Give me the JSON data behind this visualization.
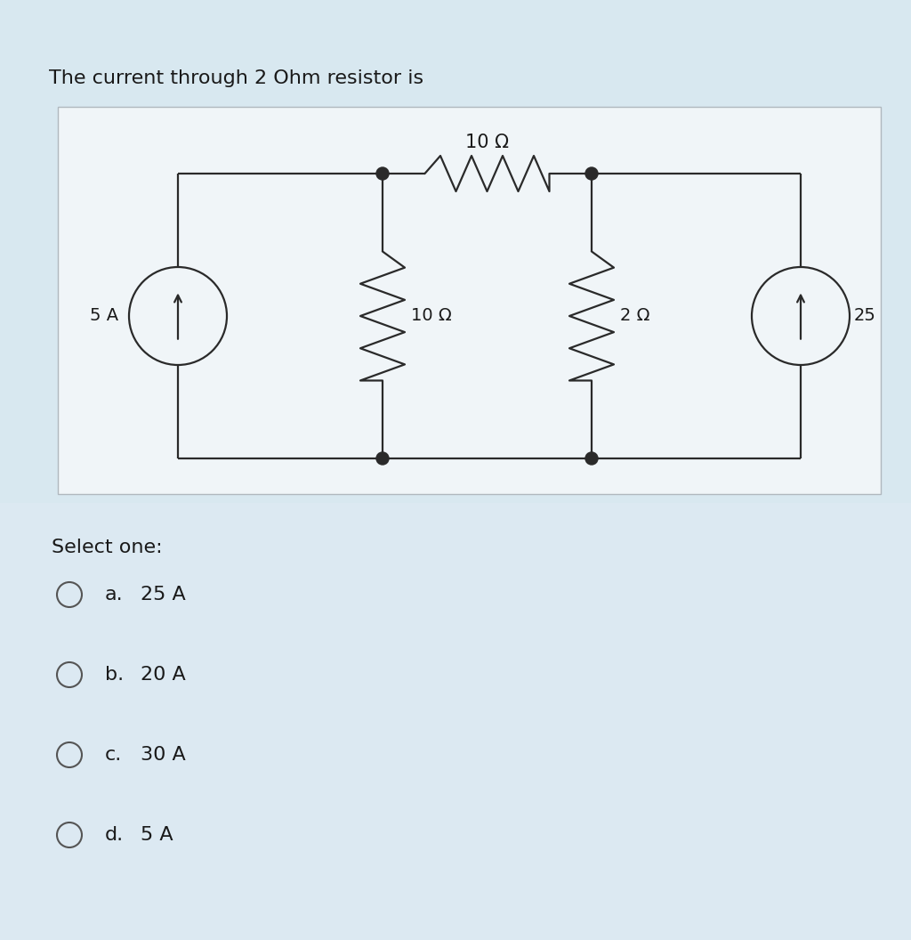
{
  "title": "The current through 2 Ohm resistor is",
  "title_fontsize": 16,
  "bg_color_top": "#d8e8f0",
  "bg_color_bottom": "#dce9f2",
  "circuit_bg": "#f0f5f8",
  "circuit_border": "#b0b8be",
  "line_color": "#2a2a2a",
  "text_color": "#1a1a1a",
  "options": [
    {
      "label": "a.",
      "text": "25 A"
    },
    {
      "label": "b.",
      "text": "20 A"
    },
    {
      "label": "c.",
      "text": "30 A"
    },
    {
      "label": "d.",
      "text": "5 A"
    }
  ],
  "select_text": "Select one:",
  "resistor_label_top": "10 Ω",
  "resistor_label_mid_left": "10 Ω",
  "resistor_label_mid_right": "2 Ω",
  "source_left_label": "5 A",
  "source_right_label": "25"
}
